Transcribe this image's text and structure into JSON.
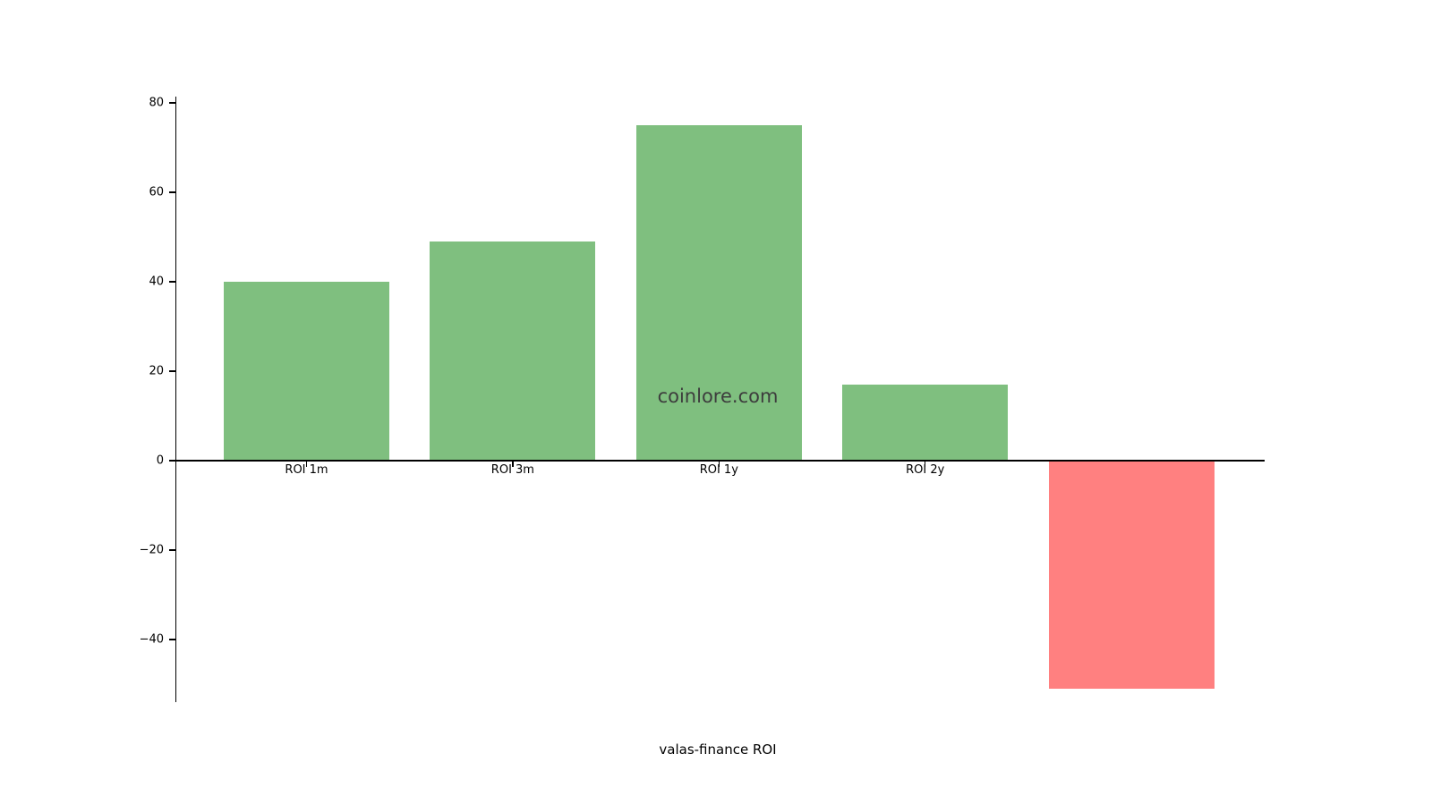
{
  "page": {
    "background": "#ffffff"
  },
  "watermark": {
    "text": "coinlore.com",
    "color": "#3d3d3d"
  },
  "chart_data": {
    "type": "bar",
    "title": "valas-finance ROI",
    "categories": [
      "ROI 1m",
      "ROI 3m",
      "ROI 1y",
      "ROI 2y",
      ""
    ],
    "values": [
      40,
      49,
      75,
      17,
      -51
    ],
    "bar_colors": [
      "#7fbf7f",
      "#7fbf7f",
      "#7fbf7f",
      "#7fbf7f",
      "#ff8080"
    ],
    "positive_color": "#7fbf7f",
    "negative_color": "#ff8080",
    "xlabel": "",
    "ylabel": "",
    "ylim": [
      -54,
      81
    ],
    "yticks": [
      80,
      60,
      40,
      20,
      0,
      -20,
      -40
    ],
    "grid": false,
    "legend": null,
    "note": "fifth bar tick label is hidden behind the negative bar"
  }
}
